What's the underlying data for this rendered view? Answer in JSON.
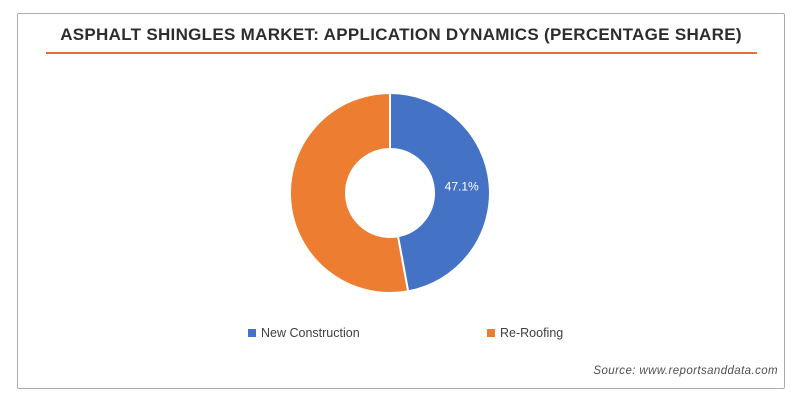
{
  "chart_data": {
    "type": "pie",
    "subtype": "donut",
    "title": "ASPHALT SHINGLES MARKET: APPLICATION DYNAMICS (PERCENTAGE SHARE)",
    "hole_ratio": 0.44,
    "start_angle_deg": 0,
    "direction": "clockwise",
    "legend_position": "bottom",
    "slice_border_color": "#FFFFFF",
    "slices": [
      {
        "label": "New Construction",
        "value": 47.1,
        "color": "#4472C4",
        "data_label": "47.1%",
        "data_label_color": "#FFFFFF"
      },
      {
        "label": "Re-Roofing",
        "value": 52.9,
        "color": "#ED7D31",
        "data_label": ""
      }
    ]
  },
  "styles": {
    "title_color": "#2D2D2D",
    "underline_color": "#EC6B33",
    "border_color": "#ACACAC",
    "legend_text_color": "#404040"
  },
  "footer": {
    "source": "Source: www.reportsanddata.com"
  }
}
